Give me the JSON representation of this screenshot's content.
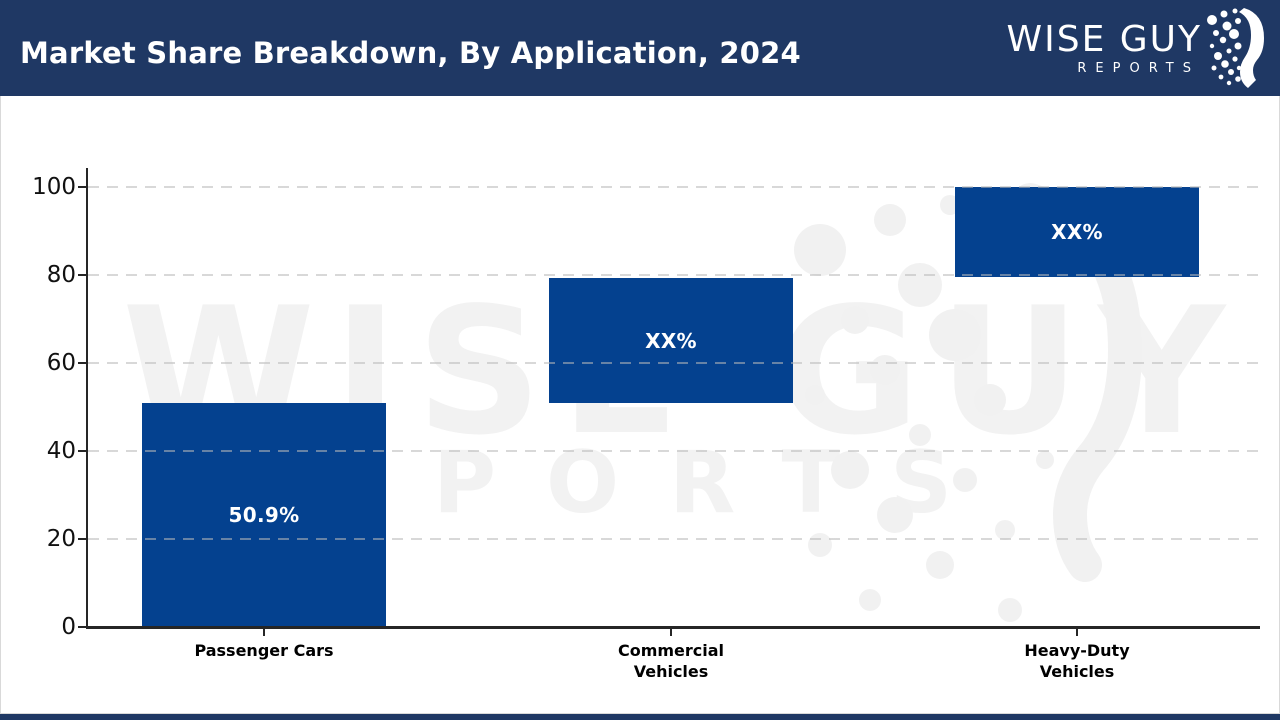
{
  "header": {
    "title": "Market Share Breakdown, By Application, 2024",
    "logo": {
      "primary": "WISE GUY",
      "secondary": "REPORTS"
    }
  },
  "watermark": {
    "primary": "WISE GUY",
    "secondary": "REPORTS"
  },
  "colors": {
    "header_bg": "#1f3864",
    "title_text": "#ffffff",
    "bar_fill": "#04418f",
    "bar_label": "#ffffff",
    "axis": "#262626",
    "tick_label": "#111111",
    "grid": "#d9d9d9",
    "panel_border": "#d9d9d9",
    "watermark": "#f2f2f2"
  },
  "chart_data": {
    "type": "bar",
    "subtype": "floating-segment",
    "title": "Market Share Breakdown, By Application, 2024",
    "xlabel": "",
    "ylabel": "",
    "ylim": [
      0,
      100
    ],
    "yticks": [
      0,
      20,
      40,
      60,
      80,
      100
    ],
    "grid": "horizontal-dashed",
    "legend": "none",
    "bars": [
      {
        "category": "Passenger Cars",
        "category_lines": [
          "Passenger Cars"
        ],
        "start": 0,
        "end": 50.9,
        "label": "50.9%"
      },
      {
        "category": "Commercial Vehicles",
        "category_lines": [
          "Commercial",
          "Vehicles"
        ],
        "start": 50.9,
        "end": 79.3,
        "label": "XX%"
      },
      {
        "category": "Heavy-Duty Vehicles",
        "category_lines": [
          "Heavy-Duty",
          "Vehicles"
        ],
        "start": 79.5,
        "end": 100,
        "label": "XX%"
      }
    ]
  }
}
